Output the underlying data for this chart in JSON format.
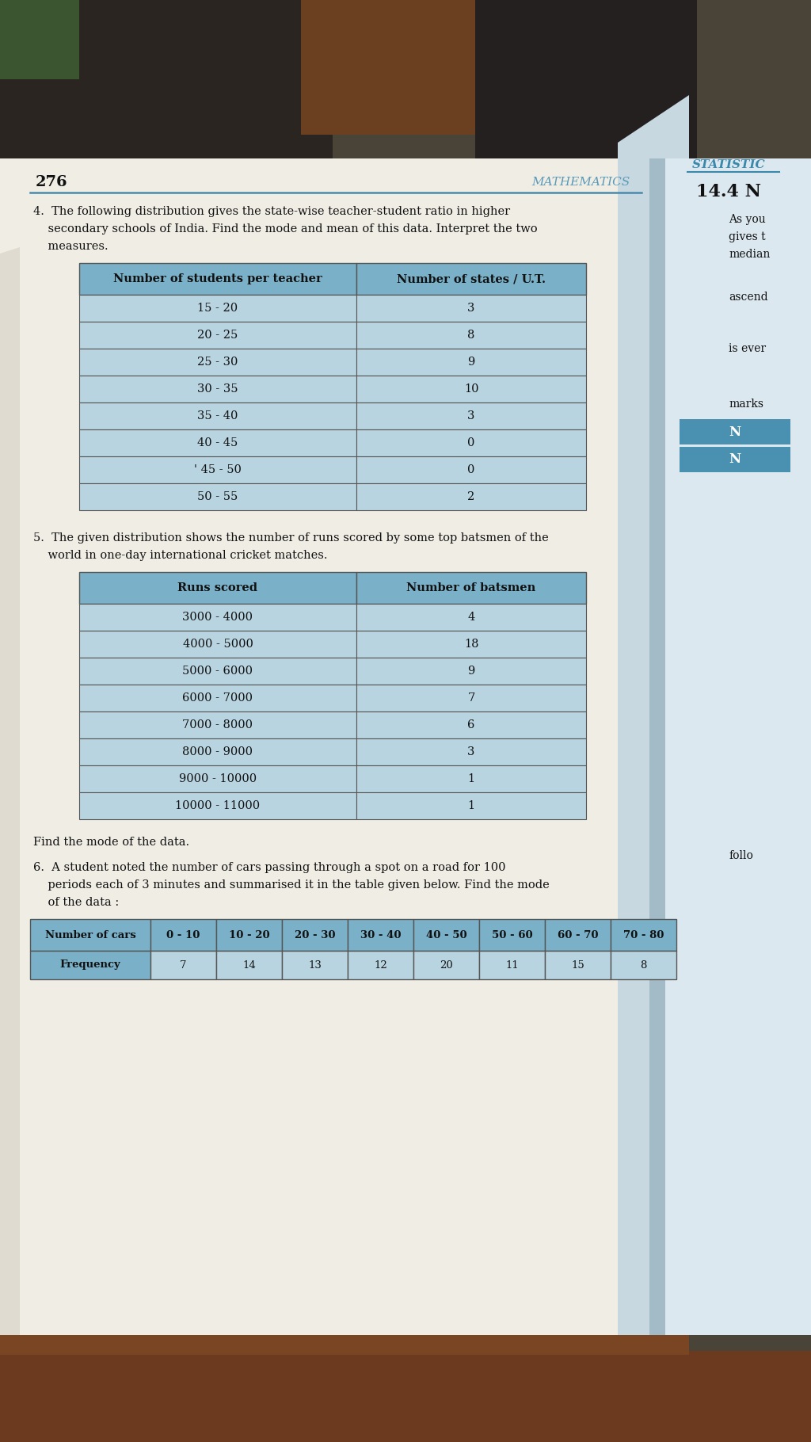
{
  "bg_color": "#5a5040",
  "top_photo_color": "#3a3530",
  "skin_color": "#8B5E3C",
  "page_bg": "#f0ede5",
  "page_shadow": "#ddd8cc",
  "right_fold_bg": "#b8ccd8",
  "right_fold_dark": "#8aaabb",
  "header_bg": "#7ab0c8",
  "row_bg": "#b8d4e0",
  "table_border": "#555555",
  "page_number": "276",
  "header_right": "MATHEMATICS",
  "right_panel_header": "STATISTIC",
  "right_panel_14": "14.4 N",
  "right_as_you": "As you",
  "right_gives": "gives t",
  "right_median": "median",
  "right_ascend": "ascend",
  "right_isever": "is ever",
  "right_marks": "marks",
  "right_follo": "follo",
  "q4_line1": "4.  The following distribution gives the state-wise teacher-student ratio in higher",
  "q4_line2": "    secondary schools of India. Find the mode and mean of this data. Interpret the two",
  "q4_line3": "    measures.",
  "table1_col1_header": "Number of students per teacher",
  "table1_col2_header": "Number of states / U.T.",
  "table1_rows": [
    [
      "15 - 20",
      "3"
    ],
    [
      "20 - 25",
      "8"
    ],
    [
      "25 - 30",
      "9"
    ],
    [
      "30 - 35",
      "10"
    ],
    [
      "35 - 40",
      "3"
    ],
    [
      "40 - 45",
      "0"
    ],
    [
      "' 45 - 50",
      "0"
    ],
    [
      "50 - 55",
      "2"
    ]
  ],
  "q5_line1": "5.  The given distribution shows the number of runs scored by some top batsmen of the",
  "q5_line2": "    world in one-day international cricket matches.",
  "table2_col1_header": "Runs scored",
  "table2_col2_header": "Number of batsmen",
  "table2_rows": [
    [
      "3000 - 4000",
      "4"
    ],
    [
      "4000 - 5000",
      "18"
    ],
    [
      "5000 - 6000",
      "9"
    ],
    [
      "6000 - 7000",
      "7"
    ],
    [
      "7000 - 8000",
      "6"
    ],
    [
      "8000 - 9000",
      "3"
    ],
    [
      "9000 - 10000",
      "1"
    ],
    [
      "10000 - 11000",
      "1"
    ]
  ],
  "q5_bottom": "Find the mode of the data.",
  "q6_line1": "6.  A student noted the number of cars passing through a spot on a road for 100",
  "q6_line2": "    periods each of 3 minutes and summarised it in the table given below. Find the mode",
  "q6_line3": "    of the data :",
  "table3_headers": [
    "Number of cars",
    "0 - 10",
    "10 - 20",
    "20 - 30",
    "30 - 40",
    "40 - 50",
    "50 - 60",
    "60 - 70",
    "70 - 80"
  ],
  "table3_row_label": "Frequency",
  "table3_freqs": [
    "7",
    "14",
    "13",
    "12",
    "20",
    "11",
    "15",
    "8"
  ]
}
